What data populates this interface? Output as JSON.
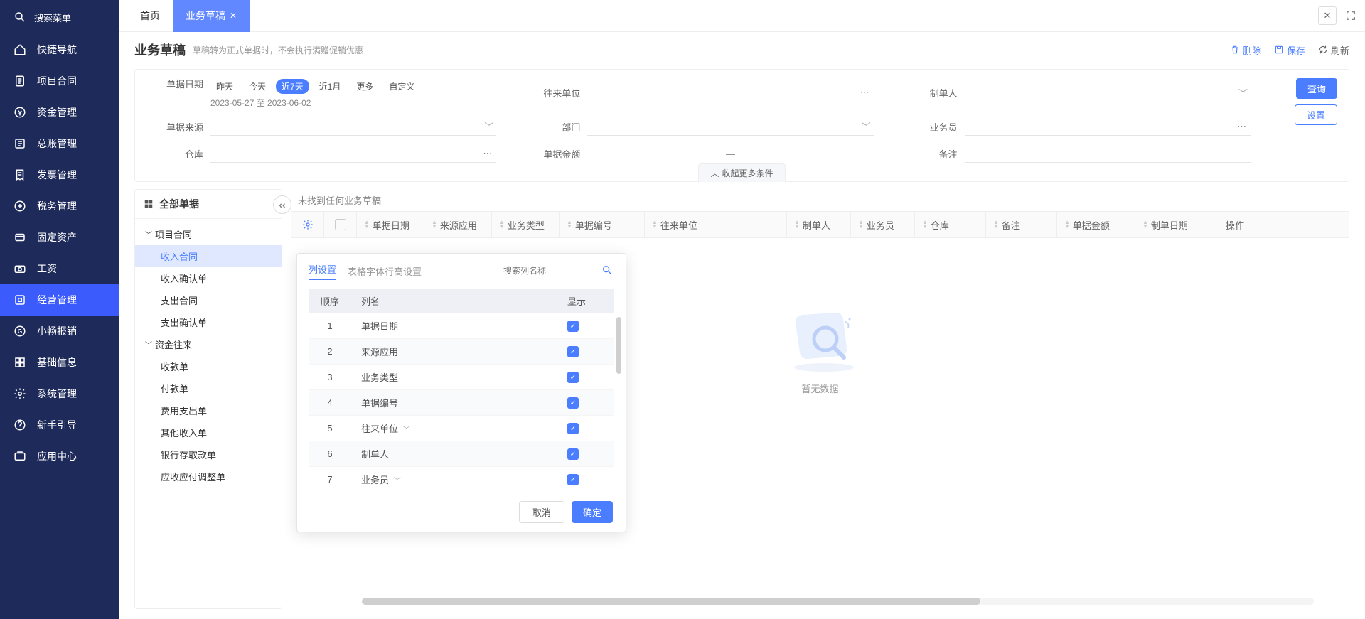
{
  "sidebar": {
    "search": "搜索菜单",
    "items": [
      {
        "label": "快捷导航",
        "icon": "home"
      },
      {
        "label": "项目合同",
        "icon": "doc"
      },
      {
        "label": "资金管理",
        "icon": "money"
      },
      {
        "label": "总账管理",
        "icon": "ledger"
      },
      {
        "label": "发票管理",
        "icon": "invoice"
      },
      {
        "label": "税务管理",
        "icon": "tax"
      },
      {
        "label": "固定资产",
        "icon": "asset"
      },
      {
        "label": "工资",
        "icon": "salary"
      },
      {
        "label": "经营管理",
        "icon": "biz",
        "active": true
      },
      {
        "label": "小畅报销",
        "icon": "reimburse"
      },
      {
        "label": "基础信息",
        "icon": "base"
      },
      {
        "label": "系统管理",
        "icon": "gear"
      },
      {
        "label": "新手引导",
        "icon": "guide"
      },
      {
        "label": "应用中心",
        "icon": "apps"
      }
    ]
  },
  "tabs": [
    {
      "label": "首页",
      "closable": false
    },
    {
      "label": "业务草稿",
      "closable": true,
      "active": true
    }
  ],
  "header": {
    "title": "业务草稿",
    "subtitle": "草稿转为正式单据时，不会执行满赠促销优惠",
    "actions": {
      "delete": "删除",
      "save": "保存",
      "refresh": "刷新"
    }
  },
  "filters": {
    "date_label": "单据日期",
    "date_options": [
      "昨天",
      "今天",
      "近7天",
      "近1月",
      "更多",
      "自定义"
    ],
    "date_selected_idx": 2,
    "date_range": "2023-05-27 至 2023-06-02",
    "f_partner": "往来单位",
    "f_creator": "制单人",
    "f_source": "单据来源",
    "f_dept": "部门",
    "f_sales": "业务员",
    "f_store": "仓库",
    "f_amount": "单据金额",
    "f_remark": "备注",
    "amount_placeholder": "—",
    "btn_query": "查询",
    "btn_setting": "设置",
    "collapse": "收起更多条件"
  },
  "tree": {
    "title": "全部单据",
    "groups": [
      {
        "name": "项目合同",
        "leaves": [
          "收入合同",
          "收入确认单",
          "支出合同",
          "支出确认单"
        ],
        "sel_idx": 0
      },
      {
        "name": "资金往来",
        "leaves": [
          "收款单",
          "付款单",
          "费用支出单",
          "其他收入单",
          "银行存取款单",
          "应收应付调整单"
        ]
      }
    ]
  },
  "table": {
    "empty_msg": "未找到任何业务草稿",
    "no_data": "暂无数据",
    "columns": [
      "单据日期",
      "来源应用",
      "业务类型",
      "单据编号",
      "往来单位",
      "制单人",
      "业务员",
      "仓库",
      "备注",
      "单据金额",
      "制单日期"
    ],
    "op_col": "操作"
  },
  "popup": {
    "tab1": "列设置",
    "tab2": "表格字体行高设置",
    "search_placeholder": "搜索列名称",
    "h_order": "顺序",
    "h_name": "列名",
    "h_show": "显示",
    "rows": [
      {
        "n": 1,
        "name": "单据日期",
        "expand": false
      },
      {
        "n": 2,
        "name": "来源应用",
        "expand": false
      },
      {
        "n": 3,
        "name": "业务类型",
        "expand": false
      },
      {
        "n": 4,
        "name": "单据编号",
        "expand": false
      },
      {
        "n": 5,
        "name": "往来单位",
        "expand": true
      },
      {
        "n": 6,
        "name": "制单人",
        "expand": false
      },
      {
        "n": 7,
        "name": "业务员",
        "expand": true
      }
    ],
    "cancel": "取消",
    "confirm": "确定"
  }
}
